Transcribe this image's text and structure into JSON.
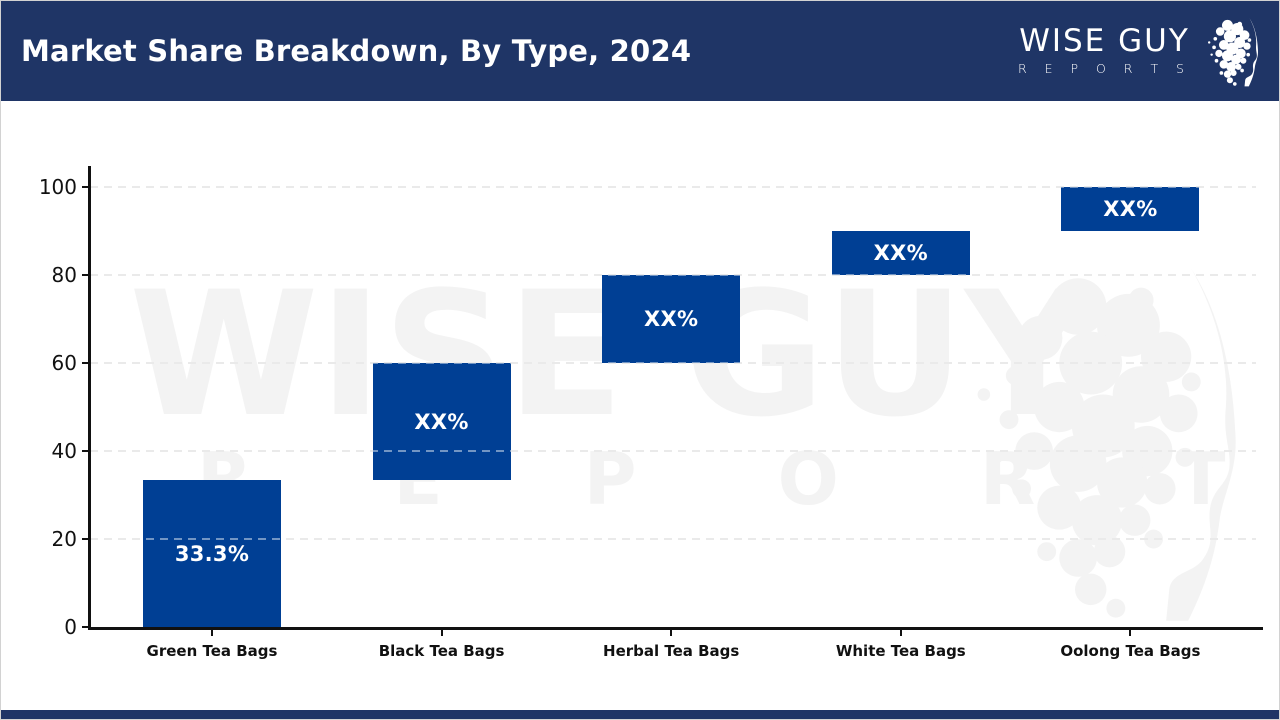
{
  "header": {
    "title": "Market Share Breakdown, By Type, 2024"
  },
  "logo": {
    "name": "WISE GUY",
    "tagline": "R E P O R T S"
  },
  "watermark": {
    "line1": "WISE GUY",
    "line2": "R E P O R T S"
  },
  "chart_data": {
    "type": "bar",
    "subtype": "waterfall",
    "title": "Market Share Breakdown, By Type, 2024",
    "categories": [
      "Green Tea Bags",
      "Black Tea Bags",
      "Herbal Tea Bags",
      "White Tea Bags",
      "Oolong Tea Bags"
    ],
    "bars": [
      {
        "category": "Green Tea Bags",
        "start": 0,
        "end": 33.3,
        "label": "33.3%"
      },
      {
        "category": "Black Tea Bags",
        "start": 33.3,
        "end": 60,
        "label": "XX%"
      },
      {
        "category": "Herbal Tea Bags",
        "start": 60,
        "end": 80,
        "label": "XX%"
      },
      {
        "category": "White Tea Bags",
        "start": 80,
        "end": 90,
        "label": "XX%"
      },
      {
        "category": "Oolong Tea Bags",
        "start": 90,
        "end": 100,
        "label": "XX%"
      }
    ],
    "y_ticks": [
      0,
      20,
      40,
      60,
      80,
      100
    ],
    "ylim": [
      0,
      105
    ],
    "xlabel": "",
    "ylabel": "",
    "grid": "dashed-horizontal",
    "legend": "none"
  },
  "colors": {
    "header_bg": "#1F3566",
    "footer_bg": "#1F3566",
    "bar": "#003F94",
    "bar_label": "#FFFFFF",
    "grid": "#D8D8D8",
    "axis": "#111111",
    "watermark": "#F3F3F3",
    "title_text": "#FFFFFF"
  }
}
